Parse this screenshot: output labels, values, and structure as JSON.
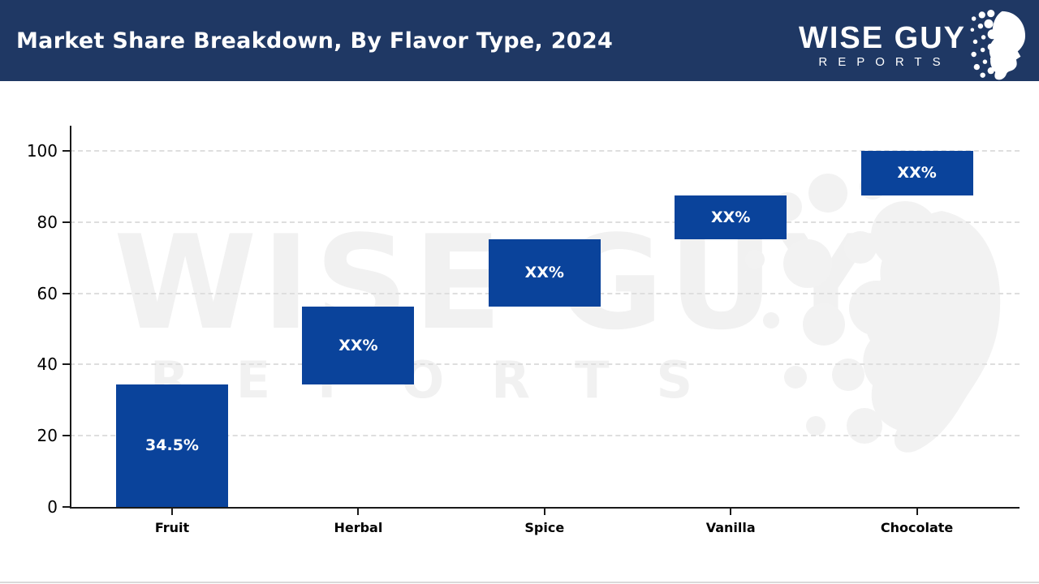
{
  "header": {
    "title": "Market Share Breakdown, By Flavor Type, 2024",
    "logo": {
      "line1": "WISE GUY",
      "line2": "REPORTS"
    }
  },
  "watermark": {
    "line1": "WISE GUY",
    "line2": "REPORTS"
  },
  "chart_data": {
    "type": "bar",
    "variant": "waterfall",
    "title": "Market Share Breakdown, By Flavor Type, 2024",
    "categories": [
      "Fruit",
      "Herbal",
      "Spice",
      "Vanilla",
      "Chocolate"
    ],
    "segments": [
      {
        "category": "Fruit",
        "start": 0,
        "end": 34.5,
        "label": "34.5%"
      },
      {
        "category": "Herbal",
        "start": 34.5,
        "end": 56.3,
        "label": "XX%"
      },
      {
        "category": "Spice",
        "start": 56.3,
        "end": 75.2,
        "label": "XX%"
      },
      {
        "category": "Vanilla",
        "start": 75.2,
        "end": 87.5,
        "label": "XX%"
      },
      {
        "category": "Chocolate",
        "start": 87.5,
        "end": 100,
        "label": "XX%"
      }
    ],
    "yticks": [
      0,
      20,
      40,
      60,
      80,
      100
    ],
    "ylim": [
      0,
      107
    ],
    "xlabel": "",
    "ylabel": "",
    "grid": "horizontal-dashed",
    "legend": "none",
    "colors": {
      "bar": "#0a439b",
      "bar_label": "#ffffff",
      "grid": "#dedede",
      "axis": "#000000",
      "header_bg": "#1f3864",
      "watermark": "#f1f1f1"
    }
  }
}
